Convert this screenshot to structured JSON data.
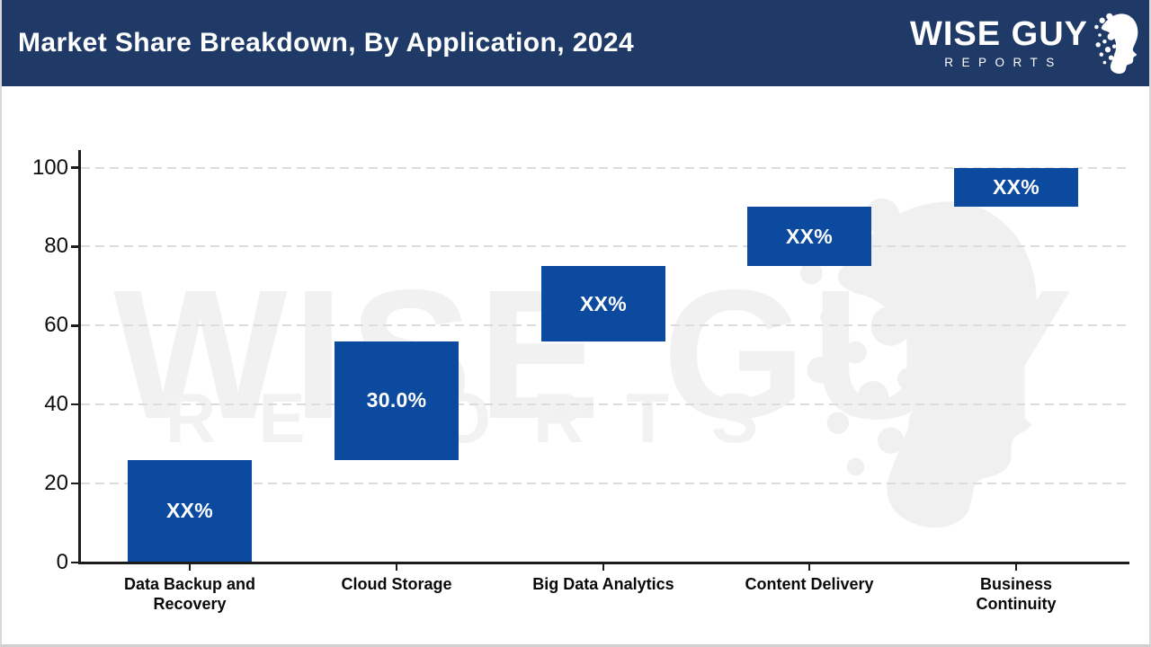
{
  "header": {
    "title": "Market Share Breakdown, By Application, 2024",
    "bg_color": "#1f3a66",
    "logo": {
      "line1": "WISE GUY",
      "line2": "REPORTS"
    }
  },
  "watermark": {
    "line1": "WISE GUY",
    "line2": "REPORTS"
  },
  "chart_data": {
    "type": "bar",
    "variant": "waterfall",
    "title": "Market Share Breakdown, By Application, 2024",
    "categories": [
      "Data Backup and\nRecovery",
      "Cloud Storage",
      "Big Data Analytics",
      "Content Delivery",
      "Business\nContinuity"
    ],
    "segments": [
      {
        "category": "Data Backup and Recovery",
        "start": 0,
        "end": 26,
        "value": 26,
        "label": "XX%"
      },
      {
        "category": "Cloud Storage",
        "start": 26,
        "end": 56,
        "value": 30,
        "label": "30.0%"
      },
      {
        "category": "Big Data Analytics",
        "start": 56,
        "end": 75,
        "value": 19,
        "label": "XX%"
      },
      {
        "category": "Content Delivery",
        "start": 75,
        "end": 90,
        "value": 15,
        "label": "XX%"
      },
      {
        "category": "Business Continuity",
        "start": 90,
        "end": 100,
        "value": 10,
        "label": "XX%"
      }
    ],
    "yticks": [
      0,
      20,
      40,
      60,
      80,
      100
    ],
    "ylim": [
      0,
      105
    ],
    "xlabel": "",
    "ylabel": "",
    "legend": false,
    "grid": "horizontal-dashed",
    "bar_color": "#0b4a9f",
    "bar_label_color": "#ffffff",
    "grid_color": "#dcdcdc",
    "axis_color": "#1c1c1c"
  }
}
